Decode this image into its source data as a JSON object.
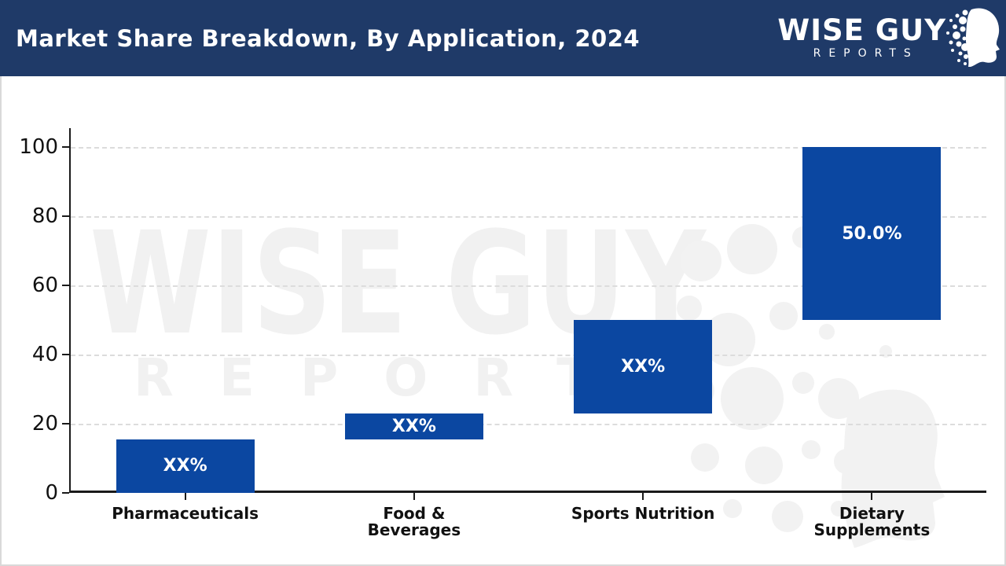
{
  "header": {
    "title": "Market Share Breakdown, By Application, 2024",
    "logo": {
      "line1": "WISE GUY",
      "line2": "REPORTS"
    }
  },
  "watermark": {
    "line1": "WISE GUY",
    "line2": "REPORTS"
  },
  "colors": {
    "header_bg": "#1f3a68",
    "bar": "#0b47a1",
    "grid": "#dcdcdc",
    "watermark": "#f1f1f1",
    "axis": "#1a1a1a",
    "bar_label_text": "#ffffff"
  },
  "chart_data": {
    "type": "bar",
    "subtype": "waterfall",
    "title": "Market Share Breakdown, By Application, 2024",
    "categories": [
      "Pharmaceuticals",
      "Food & Beverages",
      "Sports Nutrition",
      "Dietary Supplements"
    ],
    "bars": [
      {
        "category": "Pharmaceuticals",
        "start": 0,
        "end": 15.5,
        "label": "XX%"
      },
      {
        "category": "Food & Beverages",
        "start": 15.5,
        "end": 23,
        "label": "XX%"
      },
      {
        "category": "Sports Nutrition",
        "start": 23,
        "end": 50,
        "label": "XX%"
      },
      {
        "category": "Dietary Supplements",
        "start": 50,
        "end": 100,
        "label": "50.0%"
      }
    ],
    "xlabel": "",
    "ylabel": "",
    "ylim": [
      0,
      100
    ],
    "yticks": [
      0,
      20,
      40,
      60,
      80,
      100
    ],
    "grid": true,
    "legend": false
  }
}
